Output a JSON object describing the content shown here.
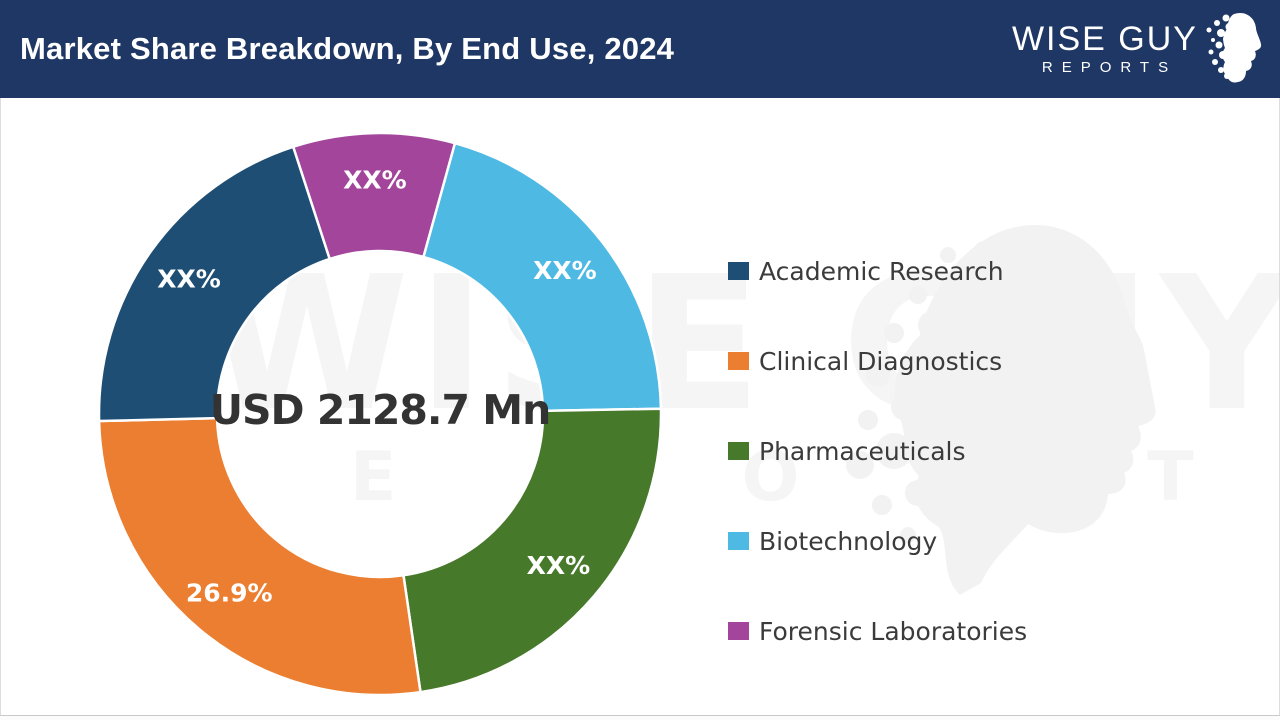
{
  "header": {
    "title": "Market Share Breakdown, By End Use, 2024",
    "bg_color": "#1F3764",
    "logo": {
      "line1": "WISE GUY",
      "line2": "REPORTS"
    }
  },
  "watermark": {
    "line1": "WISE GUY",
    "line2": "R E P O R T S"
  },
  "chart_data": {
    "type": "pie",
    "subtype": "donut",
    "center_label": "USD 2128.7 Mn",
    "start_angle_deg": -18,
    "direction": "clockwise",
    "legend_position": "right",
    "series": [
      {
        "name": "Forensic Laboratories",
        "value_pct": 9.3,
        "slice_label": "XX%",
        "color": "#A2459B"
      },
      {
        "name": "Biotechnology",
        "value_pct": 20.4,
        "slice_label": "XX%",
        "color": "#4EB9E3"
      },
      {
        "name": "Pharmaceuticals",
        "value_pct": 23.0,
        "slice_label": "XX%",
        "color": "#47792B"
      },
      {
        "name": "Clinical Diagnostics",
        "value_pct": 26.9,
        "slice_label": "26.9%",
        "color": "#EB7E30"
      },
      {
        "name": "Academic Research",
        "value_pct": 20.4,
        "slice_label": "XX%",
        "color": "#1F4E74"
      }
    ],
    "legend_order": [
      "Academic Research",
      "Clinical Diagnostics",
      "Pharmaceuticals",
      "Biotechnology",
      "Forensic Laboratories"
    ]
  }
}
